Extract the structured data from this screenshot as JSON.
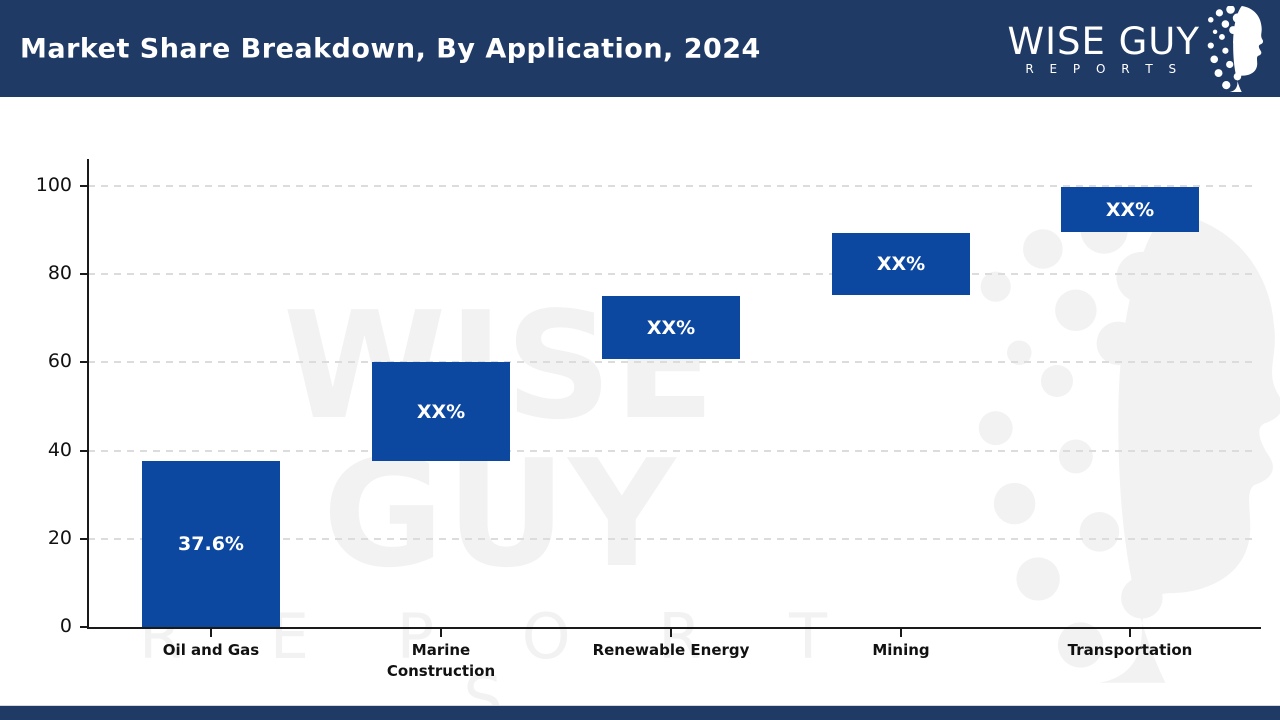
{
  "header": {
    "title": "Market Share Breakdown, By Application, 2024",
    "brand": {
      "line1": "WISE GUY",
      "line2": "R E P O R T S"
    }
  },
  "watermark": {
    "line1": "WISE GUY",
    "line2": "R E P O R T S"
  },
  "colors": {
    "navy": "#203a66",
    "bar": "#0c47a0",
    "grid": "#dcdcdc",
    "watermark": "#f2f2f2",
    "bar_label": "#ffffff"
  },
  "chart_data": {
    "type": "bar",
    "subtype": "waterfall",
    "title": "Market Share Breakdown, By Application, 2024",
    "categories": [
      "Oil and Gas",
      "Marine\nConstruction",
      "Renewable Energy",
      "Mining",
      "Transportation"
    ],
    "segments": [
      {
        "category": "Oil and Gas",
        "start": 0,
        "end": 37.6,
        "label": "37.6%"
      },
      {
        "category": "Marine Construction",
        "start": 37.6,
        "end": 60.1,
        "label": "XX%"
      },
      {
        "category": "Renewable Energy",
        "start": 60.7,
        "end": 75.0,
        "label": "XX%"
      },
      {
        "category": "Mining",
        "start": 75.2,
        "end": 89.3,
        "label": "XX%"
      },
      {
        "category": "Transportation",
        "start": 89.5,
        "end": 99.8,
        "label": "XX%"
      }
    ],
    "yticks": [
      0,
      20,
      40,
      60,
      80,
      100
    ],
    "ylim": [
      0,
      105
    ],
    "xlabel": "",
    "ylabel": "",
    "grid": "horizontal-dashed",
    "legend": "none",
    "bar_color": "#0c47a0",
    "value_label_color": "#ffffff"
  }
}
